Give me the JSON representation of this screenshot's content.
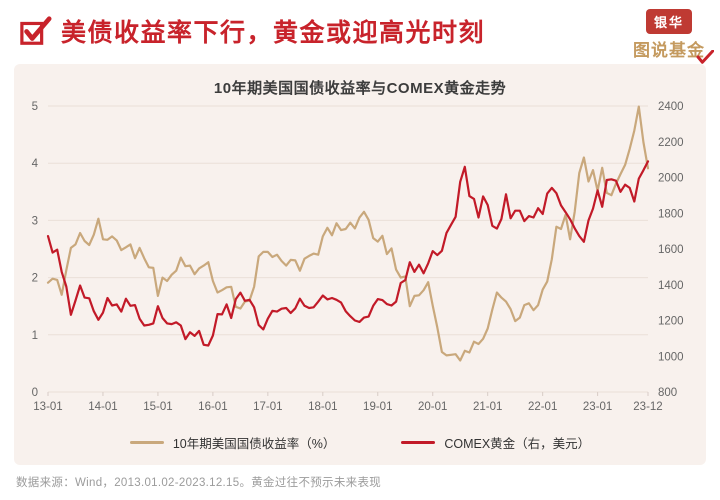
{
  "header": {
    "title": "美债收益率下行，黄金或迎高光时刻"
  },
  "brand": {
    "badge": "银华",
    "subtitle": "图说基金"
  },
  "colors": {
    "accent_red": "#C8232B",
    "brand_badge_red": "#BF3A33",
    "brand_gold": "#C49A5F",
    "card_background": "#F8F1ED",
    "yield_line_tan": "#C9A87C",
    "gold_line_red": "#C21A28",
    "gridline": "#EADFD8",
    "axis_text": "#666666"
  },
  "chart_data": {
    "type": "line",
    "title": "10年期美国国债收益率与COMEX黄金走势",
    "x_unit": "month",
    "x_start": "2013-01",
    "x_end": "2023-12",
    "grid": "horizontal",
    "legend_position": "bottom",
    "x_ticks": [
      {
        "label": "13-01",
        "month_index": 0
      },
      {
        "label": "14-01",
        "month_index": 12
      },
      {
        "label": "15-01",
        "month_index": 24
      },
      {
        "label": "16-01",
        "month_index": 36
      },
      {
        "label": "17-01",
        "month_index": 48
      },
      {
        "label": "18-01",
        "month_index": 60
      },
      {
        "label": "19-01",
        "month_index": 72
      },
      {
        "label": "20-01",
        "month_index": 84
      },
      {
        "label": "21-01",
        "month_index": 96
      },
      {
        "label": "22-01",
        "month_index": 108
      },
      {
        "label": "23-01",
        "month_index": 120
      },
      {
        "label": "23-12",
        "month_index": 131
      }
    ],
    "left_axis": {
      "ylim": [
        0,
        5
      ],
      "ticks": [
        0,
        1,
        2,
        3,
        4,
        5
      ]
    },
    "right_axis": {
      "ylim": [
        800,
        2400
      ],
      "ticks": [
        800,
        1000,
        1200,
        1400,
        1600,
        1800,
        2000,
        2200,
        2400
      ]
    },
    "series": [
      {
        "name": "10年期美国国债收益率（%）",
        "axis": "left",
        "color": "#C9A87C",
        "values": [
          1.91,
          1.98,
          1.96,
          1.7,
          2.13,
          2.52,
          2.58,
          2.78,
          2.64,
          2.57,
          2.75,
          3.03,
          2.67,
          2.66,
          2.72,
          2.65,
          2.48,
          2.53,
          2.58,
          2.34,
          2.52,
          2.34,
          2.18,
          2.17,
          1.68,
          2.0,
          1.94,
          2.05,
          2.12,
          2.35,
          2.2,
          2.21,
          2.06,
          2.16,
          2.21,
          2.27,
          1.94,
          1.74,
          1.78,
          1.83,
          1.84,
          1.49,
          1.46,
          1.58,
          1.6,
          1.84,
          2.37,
          2.45,
          2.45,
          2.36,
          2.4,
          2.29,
          2.21,
          2.31,
          2.3,
          2.12,
          2.33,
          2.38,
          2.42,
          2.4,
          2.72,
          2.87,
          2.74,
          2.95,
          2.83,
          2.85,
          2.96,
          2.86,
          3.05,
          3.15,
          3.01,
          2.69,
          2.63,
          2.73,
          2.41,
          2.51,
          2.14,
          2.0,
          2.02,
          1.5,
          1.68,
          1.69,
          1.78,
          1.92,
          1.51,
          1.13,
          0.7,
          0.64,
          0.65,
          0.66,
          0.55,
          0.72,
          0.69,
          0.88,
          0.84,
          0.93,
          1.11,
          1.44,
          1.74,
          1.65,
          1.58,
          1.45,
          1.24,
          1.3,
          1.52,
          1.55,
          1.43,
          1.52,
          1.79,
          1.93,
          2.32,
          2.89,
          2.85,
          3.1,
          2.67,
          3.15,
          3.83,
          4.1,
          3.68,
          3.88,
          3.52,
          3.92,
          3.48,
          3.44,
          3.64,
          3.81,
          3.97,
          4.25,
          4.57,
          4.99,
          4.37,
          3.91
        ]
      },
      {
        "name": "COMEX黄金（右，美元）",
        "axis": "right",
        "color": "#C21A28",
        "values": [
          1672,
          1580,
          1596,
          1472,
          1390,
          1232,
          1312,
          1396,
          1328,
          1324,
          1252,
          1204,
          1244,
          1326,
          1284,
          1290,
          1250,
          1322,
          1282,
          1286,
          1210,
          1172,
          1176,
          1184,
          1280,
          1214,
          1184,
          1180,
          1190,
          1172,
          1096,
          1134,
          1114,
          1142,
          1064,
          1060,
          1116,
          1236,
          1234,
          1290,
          1214,
          1320,
          1356,
          1310,
          1316,
          1274,
          1174,
          1150,
          1210,
          1254,
          1250,
          1266,
          1270,
          1242,
          1268,
          1322,
          1282,
          1270,
          1274,
          1305,
          1340,
          1318,
          1326,
          1316,
          1300,
          1252,
          1224,
          1200,
          1192,
          1216,
          1222,
          1282,
          1320,
          1314,
          1292,
          1284,
          1306,
          1410,
          1426,
          1526,
          1472,
          1512,
          1464,
          1520,
          1588,
          1566,
          1590,
          1690,
          1736,
          1780,
          1976,
          2060,
          1896,
          1880,
          1776,
          1894,
          1846,
          1730,
          1714,
          1768,
          1906,
          1772,
          1814,
          1814,
          1756,
          1784,
          1776,
          1828,
          1796,
          1910,
          1942,
          1912,
          1844,
          1806,
          1766,
          1716,
          1672,
          1640,
          1760,
          1826,
          1928,
          1836,
          1986,
          1990,
          1982,
          1920,
          1960,
          1942,
          1866,
          1994,
          2040,
          2090
        ]
      }
    ]
  },
  "footer": {
    "source": "数据来源：Wind，2013.01.02-2023.12.15。黄金过往不预示未来表现"
  }
}
